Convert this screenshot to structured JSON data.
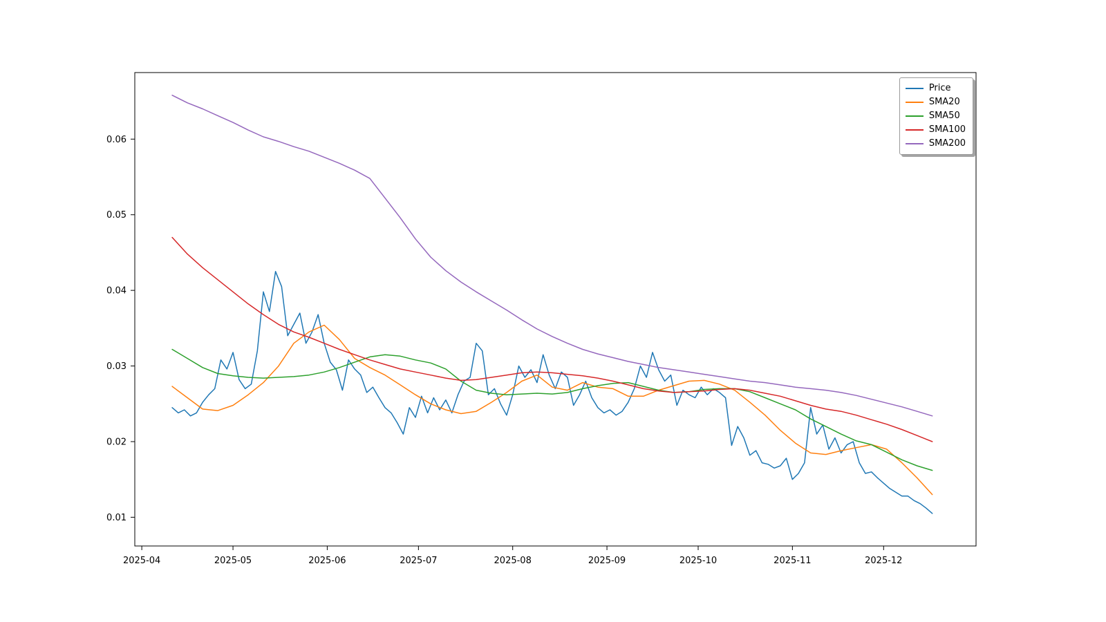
{
  "figure": {
    "background": "#ffffff"
  },
  "chart_data": {
    "type": "line",
    "title": "",
    "xlabel": "",
    "ylabel": "",
    "x_unit": "days since 2025-04-01",
    "xlim": [
      -2.3,
      274.4
    ],
    "ylim": [
      0.0062,
      0.0688
    ],
    "grid": false,
    "legend_position": "upper right",
    "x_ticks": [
      {
        "pos": 0,
        "label": "2025-04"
      },
      {
        "pos": 30,
        "label": "2025-05"
      },
      {
        "pos": 61,
        "label": "2025-06"
      },
      {
        "pos": 91,
        "label": "2025-07"
      },
      {
        "pos": 122,
        "label": "2025-08"
      },
      {
        "pos": 153,
        "label": "2025-09"
      },
      {
        "pos": 183,
        "label": "2025-10"
      },
      {
        "pos": 214,
        "label": "2025-11"
      },
      {
        "pos": 244,
        "label": "2025-12"
      }
    ],
    "y_ticks": [
      {
        "pos": 0.01,
        "label": "0.01"
      },
      {
        "pos": 0.02,
        "label": "0.02"
      },
      {
        "pos": 0.03,
        "label": "0.03"
      },
      {
        "pos": 0.04,
        "label": "0.04"
      },
      {
        "pos": 0.05,
        "label": "0.05"
      },
      {
        "pos": 0.06,
        "label": "0.06"
      }
    ],
    "series": [
      {
        "name": "Price",
        "color": "#1f77b4",
        "x": [
          10,
          12,
          14,
          16,
          18,
          20,
          22,
          24,
          26,
          28,
          30,
          32,
          34,
          36,
          38,
          40,
          42,
          44,
          46,
          48,
          50,
          52,
          54,
          56,
          58,
          60,
          62,
          64,
          66,
          68,
          70,
          72,
          74,
          76,
          78,
          80,
          82,
          84,
          86,
          88,
          90,
          92,
          94,
          96,
          98,
          100,
          102,
          104,
          106,
          108,
          110,
          112,
          114,
          116,
          118,
          120,
          122,
          124,
          126,
          128,
          130,
          132,
          134,
          136,
          138,
          140,
          142,
          144,
          146,
          148,
          150,
          152,
          154,
          156,
          158,
          160,
          162,
          164,
          166,
          168,
          170,
          172,
          174,
          176,
          178,
          180,
          182,
          184,
          186,
          188,
          190,
          192,
          194,
          196,
          198,
          200,
          202,
          204,
          206,
          208,
          210,
          212,
          214,
          216,
          218,
          220,
          222,
          224,
          226,
          228,
          230,
          232,
          234,
          236,
          238,
          240,
          242,
          244,
          246,
          248,
          250,
          252,
          254,
          256,
          258,
          260
        ],
        "values": [
          0.0245,
          0.0238,
          0.0242,
          0.0234,
          0.0238,
          0.0252,
          0.0262,
          0.027,
          0.0308,
          0.0296,
          0.0318,
          0.0282,
          0.027,
          0.0276,
          0.032,
          0.0398,
          0.0372,
          0.0425,
          0.0405,
          0.034,
          0.0355,
          0.037,
          0.033,
          0.0345,
          0.0368,
          0.033,
          0.0305,
          0.0295,
          0.0268,
          0.0308,
          0.0296,
          0.0288,
          0.0265,
          0.0272,
          0.0258,
          0.0245,
          0.0238,
          0.0225,
          0.021,
          0.0245,
          0.0232,
          0.026,
          0.0238,
          0.0258,
          0.0242,
          0.0255,
          0.0238,
          0.0262,
          0.028,
          0.0285,
          0.033,
          0.032,
          0.0262,
          0.027,
          0.025,
          0.0235,
          0.0262,
          0.03,
          0.0285,
          0.0295,
          0.0278,
          0.0315,
          0.0288,
          0.027,
          0.0292,
          0.0285,
          0.0248,
          0.0262,
          0.028,
          0.0258,
          0.0245,
          0.0238,
          0.0242,
          0.0235,
          0.024,
          0.0252,
          0.027,
          0.03,
          0.0285,
          0.0318,
          0.0295,
          0.028,
          0.0288,
          0.0248,
          0.0268,
          0.0262,
          0.0258,
          0.0272,
          0.0262,
          0.027,
          0.0265,
          0.0258,
          0.0195,
          0.022,
          0.0205,
          0.0182,
          0.0188,
          0.0172,
          0.017,
          0.0165,
          0.0168,
          0.0178,
          0.015,
          0.0158,
          0.0172,
          0.0245,
          0.021,
          0.0222,
          0.019,
          0.0205,
          0.0185,
          0.0196,
          0.02,
          0.0172,
          0.0158,
          0.016,
          0.0152,
          0.0145,
          0.0138,
          0.0133,
          0.0128,
          0.0128,
          0.0122,
          0.0118,
          0.0112,
          0.0105
        ]
      },
      {
        "name": "SMA20",
        "color": "#ff7f0e",
        "x": [
          10,
          15,
          20,
          25,
          30,
          35,
          40,
          45,
          50,
          55,
          60,
          65,
          70,
          75,
          80,
          85,
          90,
          95,
          100,
          105,
          110,
          115,
          120,
          125,
          130,
          135,
          140,
          145,
          150,
          155,
          160,
          165,
          170,
          175,
          180,
          185,
          190,
          195,
          200,
          205,
          210,
          215,
          220,
          225,
          230,
          235,
          240,
          245,
          250,
          255,
          260
        ],
        "values": [
          0.0273,
          0.0258,
          0.0243,
          0.0241,
          0.0248,
          0.0262,
          0.0278,
          0.03,
          0.033,
          0.0345,
          0.0354,
          0.0335,
          0.031,
          0.0298,
          0.0288,
          0.0275,
          0.0262,
          0.025,
          0.0242,
          0.0237,
          0.024,
          0.0252,
          0.0265,
          0.028,
          0.0288,
          0.0272,
          0.0268,
          0.0278,
          0.0272,
          0.027,
          0.026,
          0.026,
          0.0268,
          0.0274,
          0.028,
          0.0281,
          0.0276,
          0.0268,
          0.0252,
          0.0235,
          0.0215,
          0.0198,
          0.0185,
          0.0183,
          0.0188,
          0.0192,
          0.0196,
          0.019,
          0.0172,
          0.0152,
          0.013
        ]
      },
      {
        "name": "SMA50",
        "color": "#2ca02c",
        "x": [
          10,
          15,
          20,
          25,
          30,
          35,
          40,
          45,
          50,
          55,
          60,
          65,
          70,
          75,
          80,
          85,
          90,
          95,
          100,
          105,
          110,
          115,
          120,
          125,
          130,
          135,
          140,
          145,
          150,
          155,
          160,
          165,
          170,
          175,
          180,
          185,
          190,
          195,
          200,
          205,
          210,
          215,
          220,
          225,
          230,
          235,
          240,
          245,
          250,
          255,
          260
        ],
        "values": [
          0.0322,
          0.031,
          0.0298,
          0.029,
          0.0287,
          0.0285,
          0.0284,
          0.0285,
          0.0286,
          0.0288,
          0.0292,
          0.0298,
          0.0305,
          0.0312,
          0.0315,
          0.0313,
          0.0308,
          0.0304,
          0.0296,
          0.028,
          0.0268,
          0.0264,
          0.0262,
          0.0263,
          0.0264,
          0.0263,
          0.0265,
          0.027,
          0.0274,
          0.0277,
          0.0278,
          0.0273,
          0.0268,
          0.0265,
          0.0266,
          0.0269,
          0.027,
          0.027,
          0.0266,
          0.0258,
          0.025,
          0.0242,
          0.023,
          0.022,
          0.021,
          0.0201,
          0.0196,
          0.0186,
          0.0176,
          0.0168,
          0.0162
        ]
      },
      {
        "name": "SMA100",
        "color": "#d62728",
        "x": [
          10,
          15,
          20,
          25,
          30,
          35,
          40,
          45,
          50,
          55,
          60,
          65,
          70,
          75,
          80,
          85,
          90,
          95,
          100,
          105,
          110,
          115,
          120,
          125,
          130,
          135,
          140,
          145,
          150,
          155,
          160,
          165,
          170,
          175,
          180,
          185,
          190,
          195,
          200,
          205,
          210,
          215,
          220,
          225,
          230,
          235,
          240,
          245,
          250,
          255,
          260
        ],
        "values": [
          0.047,
          0.0448,
          0.043,
          0.0414,
          0.0398,
          0.0382,
          0.0368,
          0.0355,
          0.0345,
          0.0338,
          0.033,
          0.0322,
          0.0315,
          0.0308,
          0.0302,
          0.0296,
          0.0292,
          0.0288,
          0.0284,
          0.0281,
          0.0282,
          0.0285,
          0.0288,
          0.0291,
          0.0292,
          0.0291,
          0.0289,
          0.0287,
          0.0284,
          0.028,
          0.0275,
          0.027,
          0.0267,
          0.0265,
          0.0266,
          0.0267,
          0.0269,
          0.027,
          0.0268,
          0.0264,
          0.026,
          0.0254,
          0.0248,
          0.0243,
          0.024,
          0.0235,
          0.0229,
          0.0223,
          0.0216,
          0.0208,
          0.02
        ]
      },
      {
        "name": "SMA200",
        "color": "#9467bd",
        "x": [
          10,
          15,
          20,
          25,
          30,
          35,
          40,
          45,
          50,
          55,
          60,
          65,
          70,
          75,
          80,
          85,
          90,
          95,
          100,
          105,
          110,
          115,
          120,
          125,
          130,
          135,
          140,
          145,
          150,
          155,
          160,
          165,
          170,
          175,
          180,
          185,
          190,
          195,
          200,
          205,
          210,
          215,
          220,
          225,
          230,
          235,
          240,
          245,
          250,
          255,
          260
        ],
        "values": [
          0.0658,
          0.0648,
          0.064,
          0.0631,
          0.0622,
          0.0612,
          0.0603,
          0.0597,
          0.059,
          0.0584,
          0.0576,
          0.0568,
          0.0559,
          0.0548,
          0.0522,
          0.0496,
          0.0468,
          0.0444,
          0.0426,
          0.0411,
          0.0398,
          0.0386,
          0.0374,
          0.0361,
          0.0349,
          0.0339,
          0.033,
          0.0322,
          0.0316,
          0.0311,
          0.0306,
          0.0302,
          0.0298,
          0.0295,
          0.0292,
          0.0289,
          0.0286,
          0.0283,
          0.028,
          0.0278,
          0.0275,
          0.0272,
          0.027,
          0.0268,
          0.0265,
          0.0261,
          0.0256,
          0.0251,
          0.0246,
          0.024,
          0.0234
        ]
      }
    ]
  }
}
